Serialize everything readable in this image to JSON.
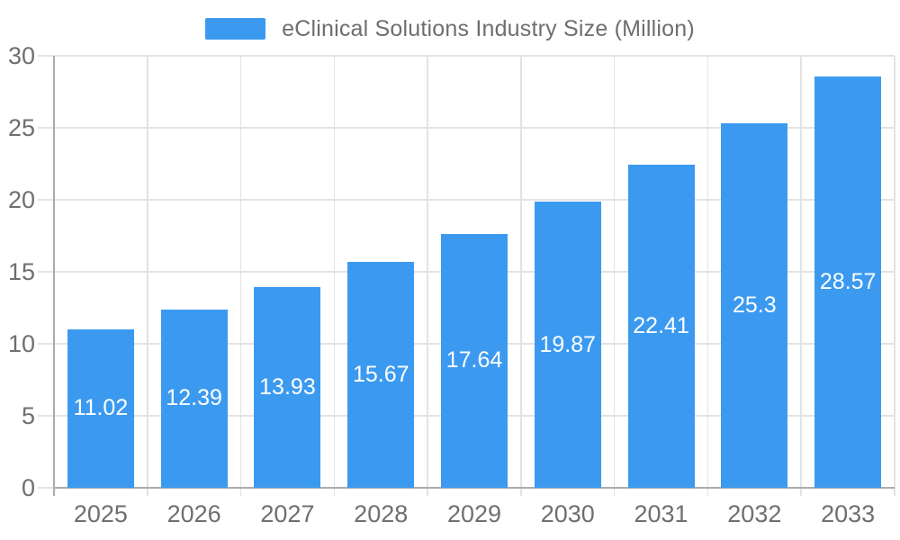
{
  "colors": {
    "bar": "#3B9AF0",
    "grid": "#E3E3E3",
    "axis": "#ACACAC",
    "tick_text": "#6F6F6F",
    "legend_text": "#6E6E6E",
    "bar_label": "#FFFFFF",
    "background": "#FFFFFF"
  },
  "legend": {
    "position": "top-center",
    "swatch_color": "#3B9AF0"
  },
  "chart_data": {
    "type": "bar",
    "title": "eClinical Solutions Industry Size (Million)",
    "categories": [
      "2025",
      "2026",
      "2027",
      "2028",
      "2029",
      "2030",
      "2031",
      "2032",
      "2033"
    ],
    "values": [
      11.02,
      12.39,
      13.93,
      15.67,
      17.64,
      19.87,
      22.41,
      25.3,
      28.57
    ],
    "bar_labels": [
      "11.02",
      "12.39",
      "13.93",
      "15.67",
      "17.64",
      "19.87",
      "22.41",
      "25.3",
      "28.57"
    ],
    "xlabel": "",
    "ylabel": "",
    "ylim": [
      0,
      30
    ],
    "y_ticks": [
      0,
      5,
      10,
      15,
      20,
      25,
      30
    ],
    "grid": "on",
    "legend_position": "top",
    "value_label_position": "center-of-bar"
  }
}
